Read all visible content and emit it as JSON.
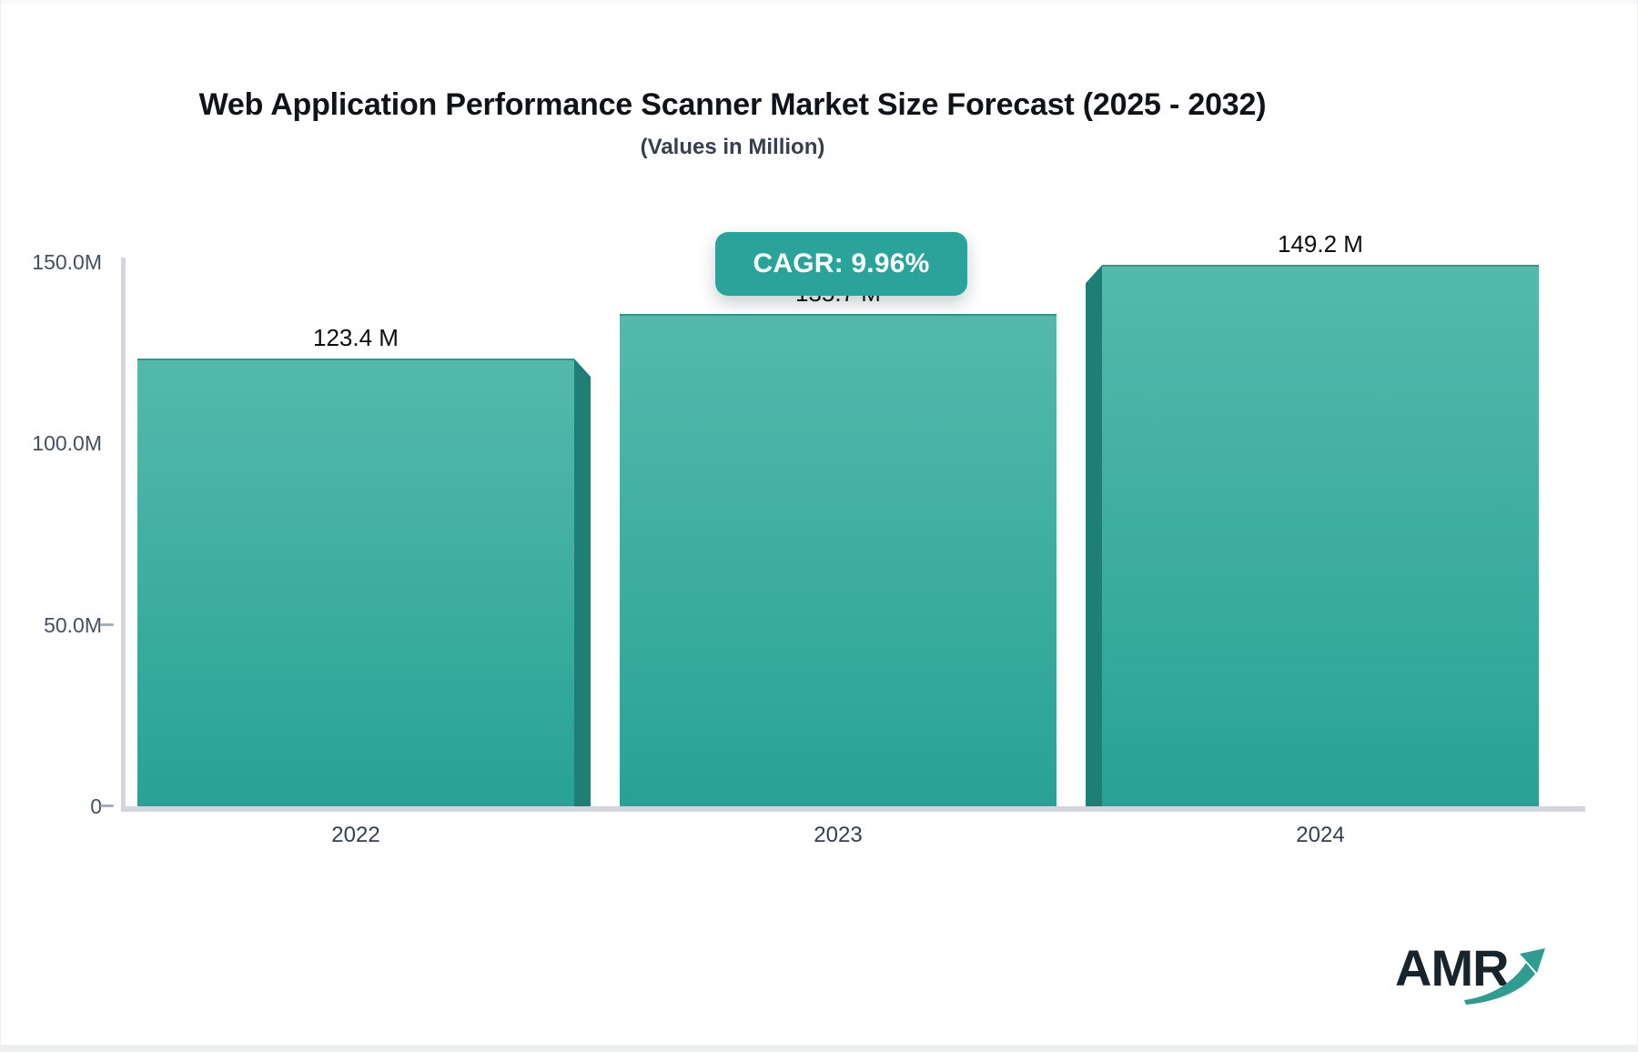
{
  "header": {
    "title": "Web Application Performance Scanner Market Size Forecast (2025 - 2032)",
    "subtitle": "(Values in Million)"
  },
  "badge": {
    "label": "CAGR: 9.96%"
  },
  "chart_data": {
    "type": "bar",
    "title": "Web Application Performance Scanner Market Size Forecast (2025 - 2032)",
    "subtitle": "(Values in Million)",
    "categories": [
      "2022",
      "2023",
      "2024"
    ],
    "values": [
      123.4,
      135.7,
      149.2
    ],
    "value_labels": [
      "123.4 M",
      "135.7 M",
      "149.2 M"
    ],
    "xlabel": "",
    "ylabel": "",
    "ylim": [
      0,
      150
    ],
    "yticks": [
      {
        "label": "150.0M",
        "value": 150,
        "dash": false
      },
      {
        "label": "100.0M",
        "value": 100,
        "dash": false
      },
      {
        "label": "50.0M",
        "value": 50,
        "dash": true
      },
      {
        "label": "0",
        "value": 0,
        "dash": true
      }
    ],
    "annotation": "CAGR: 9.96%",
    "grid": false,
    "legend": null
  },
  "colors": {
    "bar_gradient_top": "#54b9ac",
    "bar_gradient_bottom": "#28a296",
    "bar_top_edge": "#2f968b",
    "bar_side_face": "#1f7e75",
    "badge_bg": "#2aa49b",
    "axis_line": "#d3d6dc",
    "tick_text": "#46505f",
    "category_text": "#333f4d",
    "value_text": "#0d0d0d",
    "title_text": "#101418",
    "subtitle_text": "#36404c",
    "logo_text": "#17242c",
    "logo_arrow": "#2e9c91"
  },
  "logo": {
    "text": "AMR"
  }
}
